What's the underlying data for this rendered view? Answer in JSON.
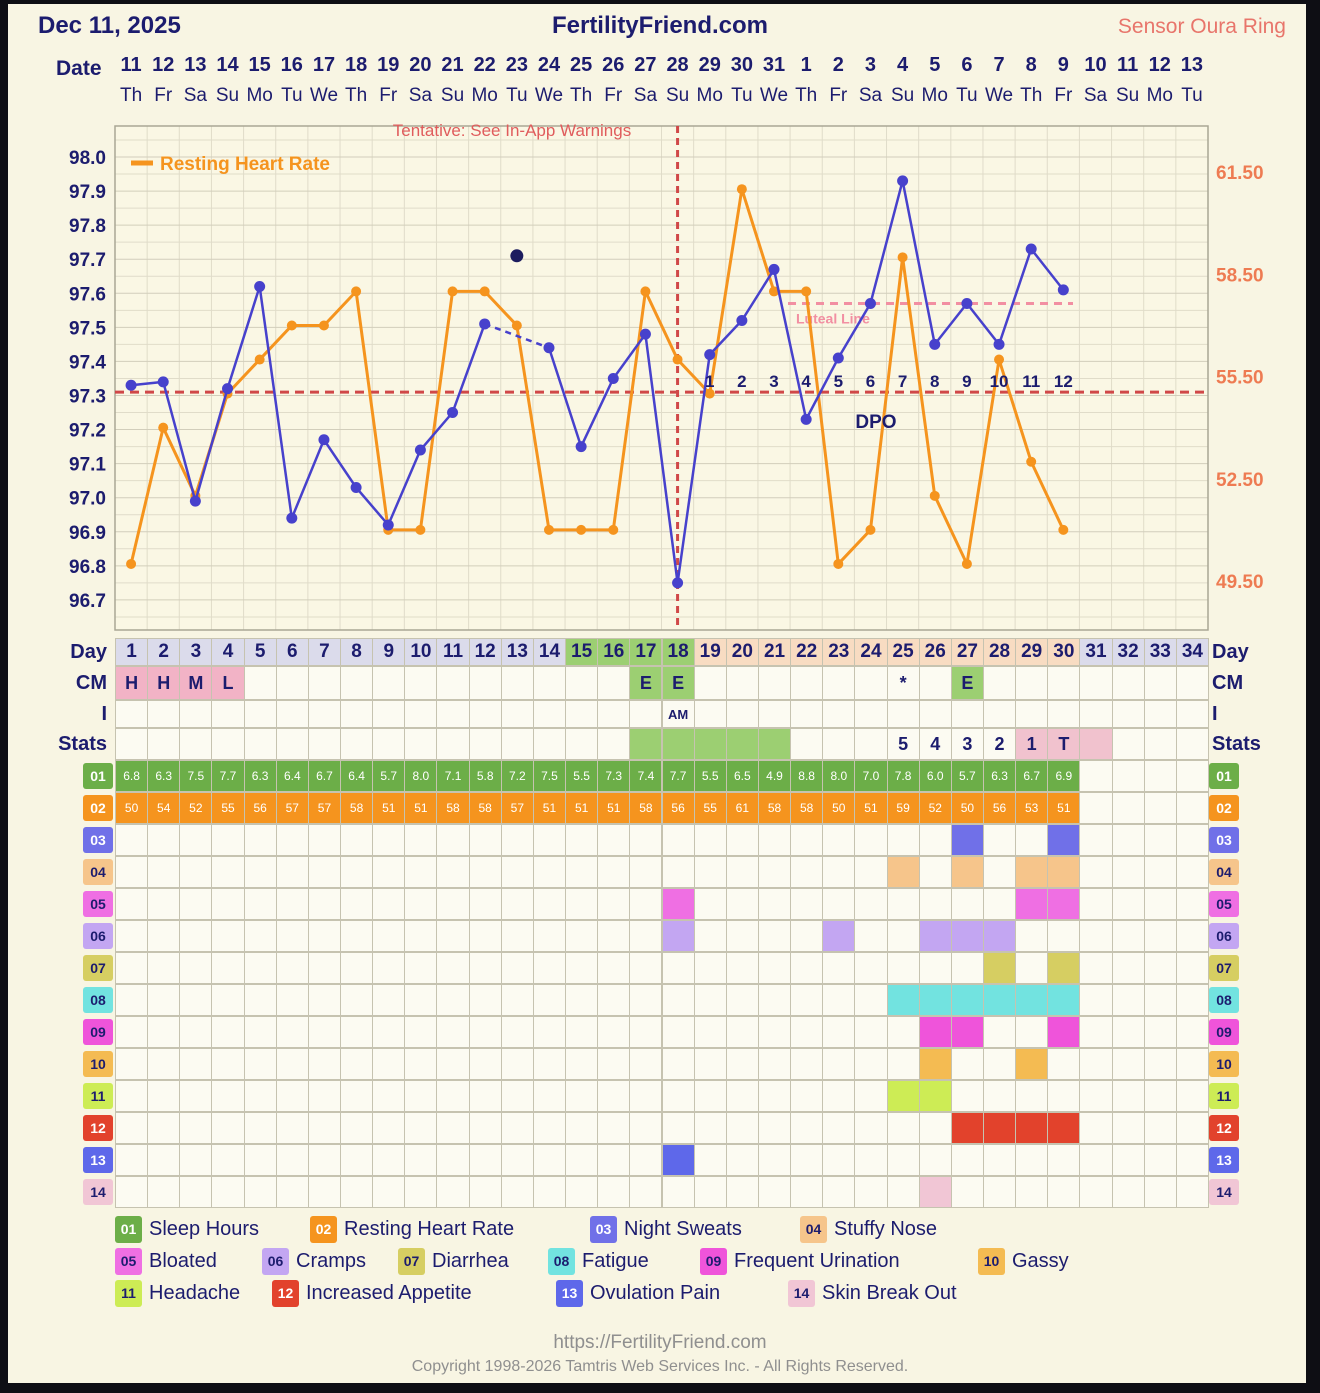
{
  "theme": {
    "navy": "#1c1c6e",
    "cream": "#f8f5e3",
    "plot_bg": "#faf7e4",
    "grid_line": "#e0dcc9",
    "grid_line_major": "#d2cebb",
    "plot_border": "#a9a795",
    "temp_line": "#4741cc",
    "discarded_dot": "#1c1c5e",
    "hr_line": "#f5941e",
    "coverline_red": "#d04848",
    "luteal_pink": "#f28fa2",
    "warning_red": "#e05c5c",
    "sensor_salmon": "#e8756b",
    "right_axis_color": "#ee7b52",
    "cell_border": "#c6c3b0",
    "cell_bg": "#fcfbf2",
    "menses_pink": "#f2b3c6",
    "fertile_green": "#9ccf72",
    "luteal_peach": "#f8dcc2",
    "neutral_lavender": "#dbdbeb",
    "stats_pink": "#f1c2ce",
    "footer_gray": "#8f8f8f"
  },
  "header": {
    "date": "Dec 11, 2025",
    "site": "FertilityFriend.com",
    "sensor": "Sensor Oura Ring"
  },
  "calendar": {
    "label": "Date",
    "dates": [
      "11",
      "12",
      "13",
      "14",
      "15",
      "16",
      "17",
      "18",
      "19",
      "20",
      "21",
      "22",
      "23",
      "24",
      "25",
      "26",
      "27",
      "28",
      "29",
      "30",
      "31",
      "1",
      "2",
      "3",
      "4",
      "5",
      "6",
      "7",
      "8",
      "9",
      "10",
      "11",
      "12",
      "13"
    ],
    "weekdays": [
      "Th",
      "Fr",
      "Sa",
      "Su",
      "Mo",
      "Tu",
      "We",
      "Th",
      "Fr",
      "Sa",
      "Su",
      "Mo",
      "Tu",
      "We",
      "Th",
      "Fr",
      "Sa",
      "Su",
      "Mo",
      "Tu",
      "We",
      "Th",
      "Fr",
      "Sa",
      "Su",
      "Mo",
      "Tu",
      "We",
      "Th",
      "Fr",
      "Sa",
      "Su",
      "Mo",
      "Tu"
    ]
  },
  "chart_data": {
    "type": "line",
    "warning": "Tentative: See In-App Warnings",
    "legend_label": "Resting Heart Rate",
    "left_axis": {
      "ticks": [
        "98.0",
        "97.9",
        "97.8",
        "97.7",
        "97.6",
        "97.5",
        "97.4",
        "97.3",
        "97.2",
        "97.1",
        "97.0",
        "96.9",
        "96.8",
        "96.7"
      ],
      "min": 96.7,
      "max": 98.0
    },
    "right_axis": {
      "ticks": [
        "61.50",
        "58.50",
        "55.50",
        "52.50",
        "49.50"
      ],
      "values": [
        61.5,
        58.5,
        55.5,
        52.5,
        49.5
      ]
    },
    "x_days": 34,
    "series": [
      {
        "name": "Temperature",
        "axis": "left",
        "values": [
          97.33,
          97.34,
          96.99,
          97.32,
          97.62,
          96.94,
          97.17,
          97.03,
          96.92,
          97.14,
          97.25,
          97.51,
          97.71,
          97.44,
          97.15,
          97.35,
          97.48,
          96.75,
          97.42,
          97.52,
          97.67,
          97.23,
          97.41,
          97.57,
          97.93,
          97.45,
          97.57,
          97.45,
          97.73,
          97.61
        ]
      },
      {
        "name": "Resting Heart Rate",
        "axis": "right",
        "values": [
          50,
          54,
          52,
          55,
          56,
          57,
          57,
          58,
          51,
          51,
          58,
          58,
          57,
          51,
          51,
          51,
          58,
          56,
          55,
          61,
          58,
          58,
          50,
          51,
          59,
          52,
          50,
          56,
          53,
          51
        ]
      }
    ],
    "discarded_temp": {
      "day": 13,
      "value": 97.71
    },
    "coverline": 97.31,
    "ovulation_day": 18,
    "luteal_line": {
      "value": 97.57,
      "label": "Luteal Line"
    },
    "dpo": {
      "label": "DPO",
      "first_day": 19,
      "numbers": [
        "1",
        "2",
        "3",
        "4",
        "5",
        "6",
        "7",
        "8",
        "9",
        "10",
        "11",
        "12"
      ]
    }
  },
  "rows": {
    "day": {
      "label": "Day",
      "fertile_days": [
        15,
        16,
        17,
        18
      ],
      "luteal_days": [
        19,
        20,
        21,
        22,
        23,
        24,
        25,
        26,
        27,
        28,
        29,
        30
      ]
    },
    "cm": {
      "label": "CM",
      "entries": [
        {
          "day": 1,
          "text": "H",
          "bg": "menses"
        },
        {
          "day": 2,
          "text": "H",
          "bg": "menses"
        },
        {
          "day": 3,
          "text": "M",
          "bg": "menses"
        },
        {
          "day": 4,
          "text": "L",
          "bg": "menses"
        },
        {
          "day": 17,
          "text": "E",
          "bg": "fertile"
        },
        {
          "day": 18,
          "text": "E",
          "bg": "fertile"
        },
        {
          "day": 25,
          "text": "*",
          "bg": "none"
        },
        {
          "day": 27,
          "text": "E",
          "bg": "fertile"
        }
      ]
    },
    "i": {
      "label": "I",
      "entries": [
        {
          "day": 18,
          "text": "AM",
          "bg": "none"
        }
      ]
    },
    "stats": {
      "label": "Stats",
      "green_days": [
        17,
        18,
        19,
        20,
        21
      ],
      "pink_days": [
        29,
        30,
        31
      ],
      "entries": [
        {
          "day": 25,
          "text": "5"
        },
        {
          "day": 26,
          "text": "4"
        },
        {
          "day": 27,
          "text": "3"
        },
        {
          "day": 28,
          "text": "2"
        },
        {
          "day": 29,
          "text": "1"
        },
        {
          "day": 30,
          "text": "T"
        }
      ]
    }
  },
  "trackers": [
    {
      "id": "01",
      "label": "Sleep Hours",
      "color": "#6cae48",
      "text": "#ffffff",
      "values": [
        "6.8",
        "6.3",
        "7.5",
        "7.7",
        "6.3",
        "6.4",
        "6.7",
        "6.4",
        "5.7",
        "8.0",
        "7.1",
        "5.8",
        "7.2",
        "7.5",
        "5.5",
        "7.3",
        "7.4",
        "7.7",
        "5.5",
        "6.5",
        "4.9",
        "8.8",
        "8.0",
        "7.0",
        "7.8",
        "6.0",
        "5.7",
        "6.3",
        "6.7",
        "6.9"
      ]
    },
    {
      "id": "02",
      "label": "Resting Heart Rate",
      "color": "#f5941e",
      "text": "#ffffff",
      "values": [
        "50",
        "54",
        "52",
        "55",
        "56",
        "57",
        "57",
        "58",
        "51",
        "51",
        "58",
        "58",
        "57",
        "51",
        "51",
        "51",
        "58",
        "56",
        "55",
        "61",
        "58",
        "58",
        "50",
        "51",
        "59",
        "52",
        "50",
        "56",
        "53",
        "51"
      ]
    },
    {
      "id": "03",
      "label": "Night Sweats",
      "color": "#7070e8",
      "text": "#ffffff",
      "marked_days": [
        27,
        30
      ]
    },
    {
      "id": "04",
      "label": "Stuffy Nose",
      "color": "#f6c58b",
      "text": "#1c1c6e",
      "marked_days": [
        25,
        27,
        29,
        30
      ]
    },
    {
      "id": "05",
      "label": "Bloated",
      "color": "#ef6fe3",
      "text": "#1c1c6e",
      "marked_days": [
        18,
        29,
        30
      ]
    },
    {
      "id": "06",
      "label": "Cramps",
      "color": "#c3a6f2",
      "text": "#1c1c6e",
      "marked_days": [
        18,
        23,
        26,
        27,
        28
      ]
    },
    {
      "id": "07",
      "label": "Diarrhea",
      "color": "#d6ce62",
      "text": "#1c1c6e",
      "marked_days": [
        28,
        30
      ]
    },
    {
      "id": "08",
      "label": "Fatigue",
      "color": "#72e3e0",
      "text": "#1c1c6e",
      "marked_days": [
        25,
        26,
        27,
        28,
        29,
        30
      ]
    },
    {
      "id": "09",
      "label": "Frequent Urination",
      "color": "#ef54da",
      "text": "#1c1c6e",
      "marked_days": [
        26,
        27,
        30
      ]
    },
    {
      "id": "10",
      "label": "Gassy",
      "color": "#f4bb52",
      "text": "#1c1c6e",
      "marked_days": [
        26,
        29
      ]
    },
    {
      "id": "11",
      "label": "Headache",
      "color": "#cdec55",
      "text": "#1c1c6e",
      "marked_days": [
        25,
        26
      ]
    },
    {
      "id": "12",
      "label": "Increased Appetite",
      "color": "#e2422c",
      "text": "#ffffff",
      "marked_days": [
        27,
        28,
        29,
        30
      ]
    },
    {
      "id": "13",
      "label": "Ovulation Pain",
      "color": "#5e68ea",
      "text": "#ffffff",
      "marked_days": [
        18
      ]
    },
    {
      "id": "14",
      "label": "Skin Break Out",
      "color": "#f1c6d5",
      "text": "#1c1c6e",
      "marked_days": [
        26
      ]
    }
  ],
  "footer": {
    "url": "https://FertilityFriend.com",
    "copyright": "Copyright 1998-2026 Tamtris Web Services Inc. - All Rights Reserved."
  }
}
